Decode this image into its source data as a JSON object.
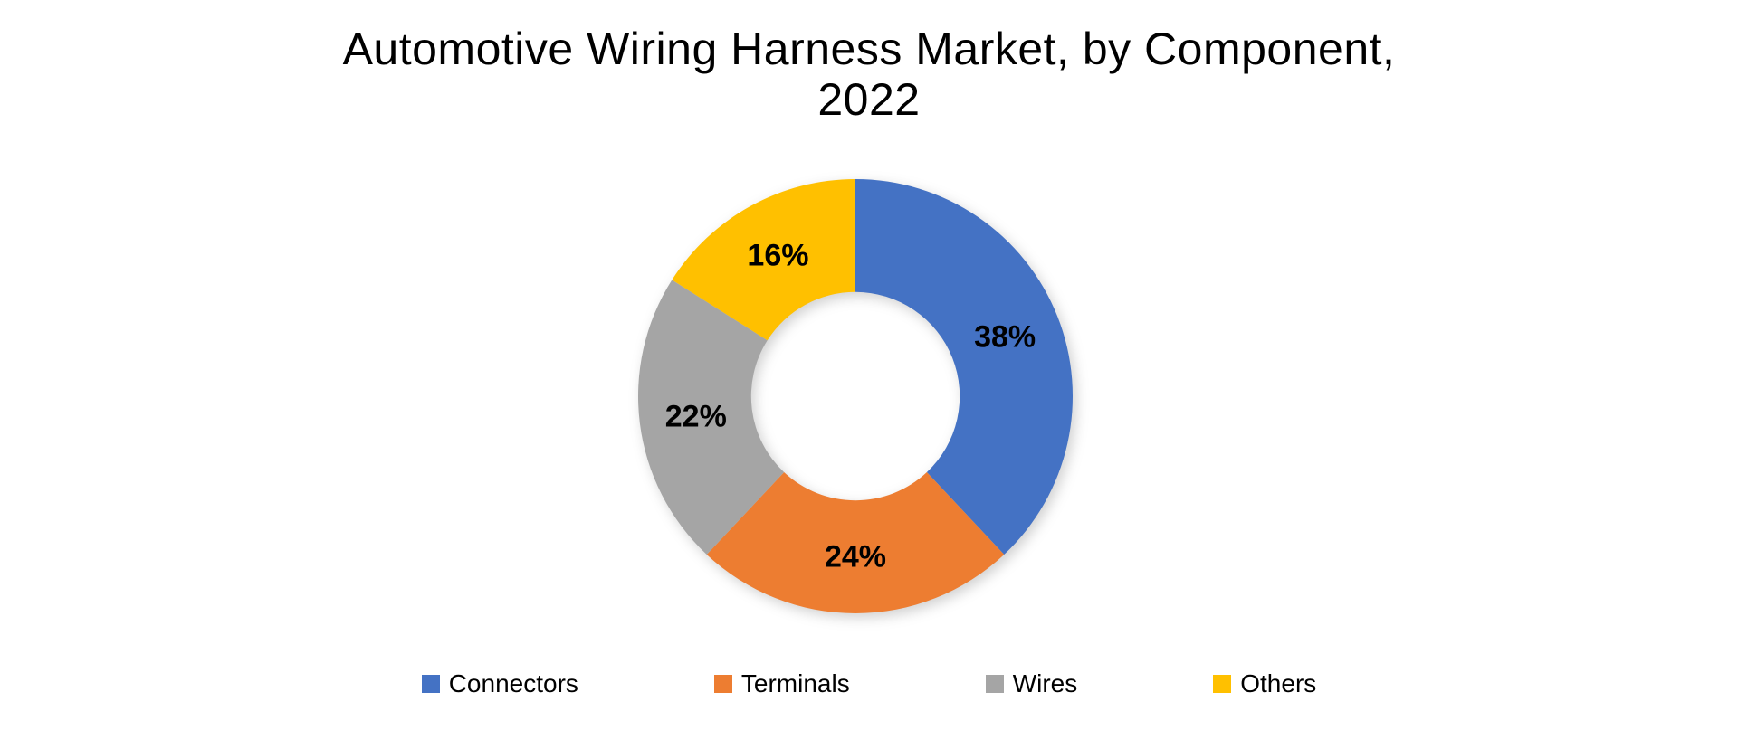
{
  "title": {
    "full": "Automotive Wiring Harness Market, by Component, 2022",
    "lines": [
      "Automotive Wiring Harness Market, by Component,",
      "2022"
    ]
  },
  "chart_data": {
    "type": "pie",
    "subtype": "donut",
    "title": "Automotive Wiring Harness Market, by Component, 2022",
    "categories": [
      "Connectors",
      "Terminals",
      "Wires",
      "Others"
    ],
    "values": [
      38,
      24,
      22,
      16
    ],
    "data_labels": [
      "38%",
      "24%",
      "22%",
      "16%"
    ],
    "unit": "%",
    "colors": [
      "#4472C4",
      "#ED7D31",
      "#A5A5A5",
      "#FFC000"
    ],
    "start_angle_deg": 0,
    "direction": "clockwise",
    "hole_ratio": 0.48,
    "label_radius_ratio": 0.74,
    "label_color": "#000000",
    "legend_position": "bottom",
    "background_color": "#FFFFFF"
  }
}
